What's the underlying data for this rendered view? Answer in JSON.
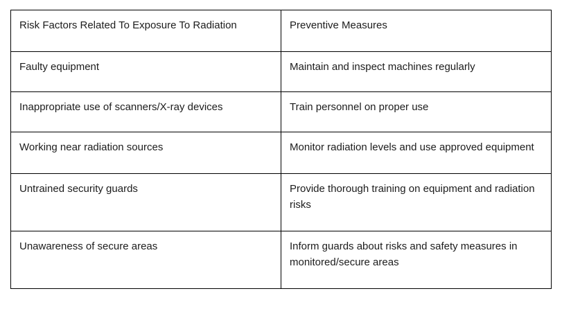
{
  "table": {
    "headers": [
      "Risk Factors Related To Exposure To Radiation",
      "Preventive Measures"
    ],
    "rows": [
      {
        "risk": "Faulty equipment",
        "measure": "Maintain and inspect machines regularly"
      },
      {
        "risk": "Inappropriate use of scanners/X-ray devices",
        "measure": "Train personnel on proper use"
      },
      {
        "risk": "Working near radiation sources",
        "measure": "Monitor radiation levels and use approved equipment"
      },
      {
        "risk": "Untrained security guards",
        "measure": "Provide thorough training on equipment and radiation risks"
      },
      {
        "risk": "Unawareness of secure areas",
        "measure": "Inform guards about risks and safety measures in monitored/secure areas"
      }
    ],
    "colors": {
      "border": "#000000",
      "text": "#1c1c1c",
      "background": "#ffffff"
    }
  }
}
